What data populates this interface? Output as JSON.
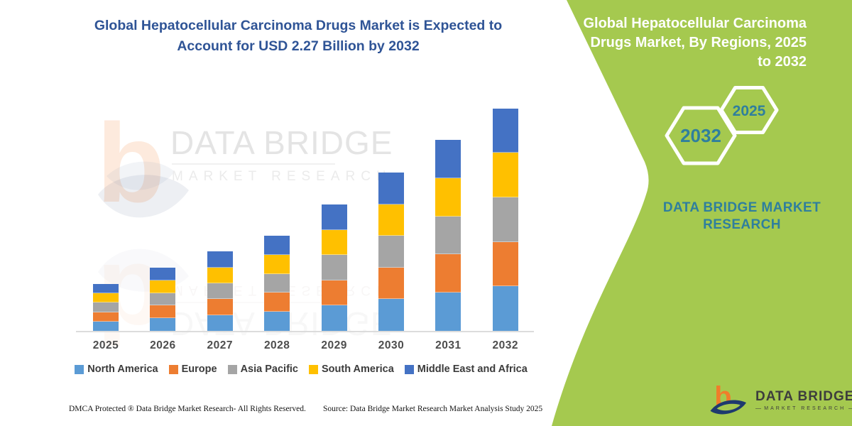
{
  "header": {
    "title_lines": [
      "Global Hepatocellular Carcinoma Drugs Market is Expected to",
      "Account for USD 2.27 Billion by 2032"
    ],
    "title_color": "#2f5496"
  },
  "watermark": {
    "logo_letter": "b",
    "brand": "DATA BRIDGE",
    "sub": "MARKET RESEARCH"
  },
  "chart_data": {
    "type": "bar",
    "stacked": true,
    "title": "Global Hepatocellular Carcinoma Drugs Market is Expected to Account for USD 2.27 Billion by 2032",
    "unit": "USD billion",
    "categories": [
      "2025",
      "2026",
      "2027",
      "2028",
      "2029",
      "2030",
      "2031",
      "2032"
    ],
    "series": [
      {
        "name": "North America",
        "color": "#5B9BD5",
        "values": [
          0.096,
          0.129,
          0.162,
          0.194,
          0.258,
          0.323,
          0.39,
          0.454
        ]
      },
      {
        "name": "Europe",
        "color": "#ED7D31",
        "values": [
          0.096,
          0.129,
          0.162,
          0.194,
          0.258,
          0.323,
          0.39,
          0.454
        ]
      },
      {
        "name": "Asia Pacific",
        "color": "#A5A5A5",
        "values": [
          0.096,
          0.129,
          0.162,
          0.194,
          0.258,
          0.323,
          0.39,
          0.454
        ]
      },
      {
        "name": "South America",
        "color": "#FFC000",
        "values": [
          0.096,
          0.129,
          0.162,
          0.194,
          0.258,
          0.323,
          0.39,
          0.454
        ]
      },
      {
        "name": "Middle East and Africa",
        "color": "#4472C4",
        "values": [
          0.096,
          0.129,
          0.162,
          0.194,
          0.258,
          0.323,
          0.39,
          0.454
        ]
      }
    ],
    "totals": [
      0.48,
      0.645,
      0.81,
      0.97,
      1.29,
      1.615,
      1.95,
      2.27
    ],
    "ylim": [
      0,
      2.33
    ],
    "grid": false,
    "axis_labels_shown": false,
    "legend_position": "bottom",
    "highlight_value_2032": "USD 2.27 Billion"
  },
  "footer": {
    "dmca": "DMCA Protected ® Data Bridge Market Research-  All Rights Reserved.",
    "source": "Source: Data Bridge Market Research  Market Analysis Study 2025"
  },
  "panel": {
    "bg_color": "#A5C94F",
    "accent_text_color": "#2f7f9d",
    "title_lines": [
      "Global Hepatocellular Carcinoma",
      "Drugs Market, By Regions, 2025",
      "to 2032"
    ],
    "hexagons": [
      {
        "label": "2032"
      },
      {
        "label": "2025"
      }
    ],
    "brand_lines": [
      "DATA BRIDGE MARKET",
      "RESEARCH"
    ],
    "logo": {
      "letter": "b",
      "brand": "DATA BRIDGE",
      "sub": "MARKET RESEARCH"
    }
  }
}
